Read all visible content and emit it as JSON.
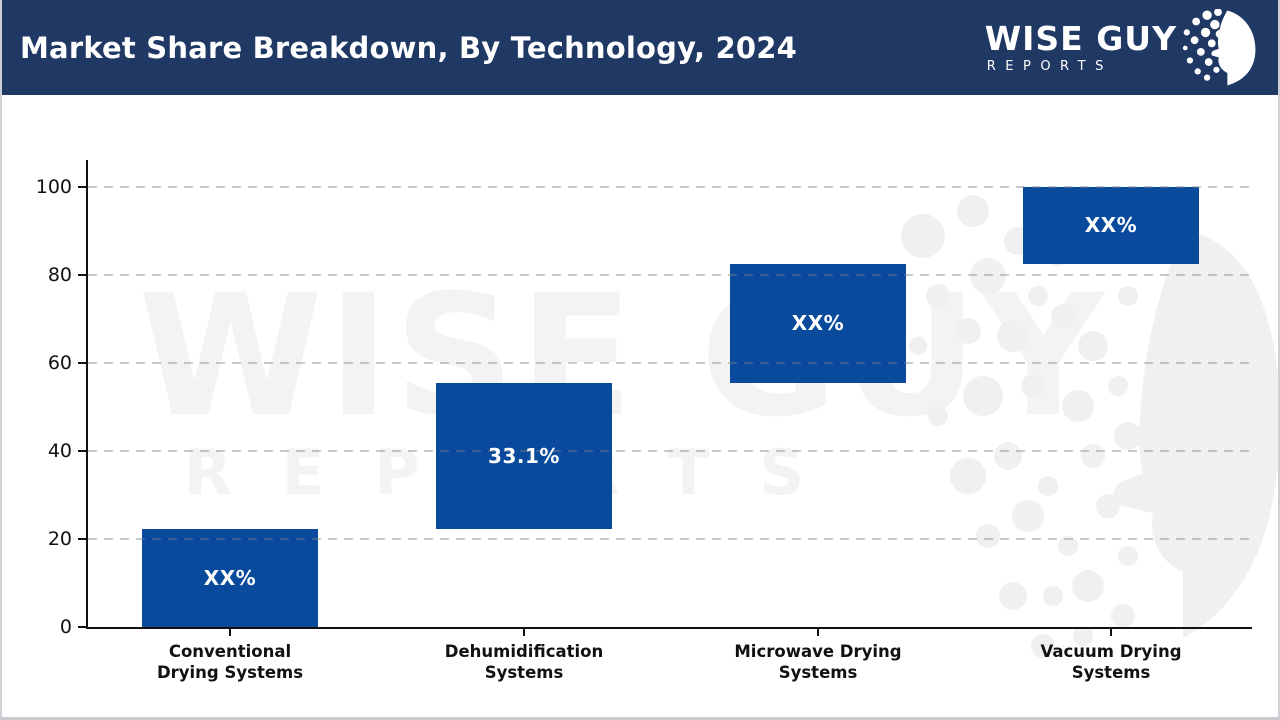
{
  "header": {
    "title": "Market Share Breakdown, By Technology, 2024",
    "bg_color": "#1f3864",
    "logo": {
      "name": "WISE GUY",
      "sub": "REPORTS"
    }
  },
  "watermark": {
    "name": "WISE GUY",
    "sub": "REPORTS"
  },
  "chart_data": {
    "type": "bar",
    "subtype": "waterfall-floating-bars",
    "title": "Market Share Breakdown, By Technology, 2024",
    "xlabel": "",
    "ylabel": "",
    "units": "%",
    "ylim": [
      0,
      106
    ],
    "yticks": [
      0,
      20,
      40,
      60,
      80,
      100
    ],
    "grid": {
      "horizontal": true,
      "style": "dashed"
    },
    "legend": "none",
    "categories": [
      {
        "line1": "Conventional",
        "line2": "Drying Systems"
      },
      {
        "line1": "Dehumidification",
        "line2": "Systems"
      },
      {
        "line1": "Microwave Drying",
        "line2": "Systems"
      },
      {
        "line1": "Vacuum Drying",
        "line2": "Systems"
      }
    ],
    "segments": [
      {
        "category": "Conventional Drying Systems",
        "start": 0,
        "end": 22.3,
        "value": 22.3,
        "label": "XX%"
      },
      {
        "category": "Dehumidification Systems",
        "start": 22.3,
        "end": 55.4,
        "value": 33.1,
        "label": "33.1%"
      },
      {
        "category": "Microwave Drying Systems",
        "start": 55.4,
        "end": 82.6,
        "value": 27.2,
        "label": "XX%"
      },
      {
        "category": "Vacuum Drying Systems",
        "start": 82.6,
        "end": 100,
        "value": 17.4,
        "label": "XX%"
      }
    ],
    "colors": {
      "bar": "#0a4a9c",
      "bar_label": "#ffffff",
      "header_bg": "#1f3864",
      "axis": "#000000",
      "gridline": "#cccccc",
      "watermark": "#f3f3f3"
    }
  }
}
